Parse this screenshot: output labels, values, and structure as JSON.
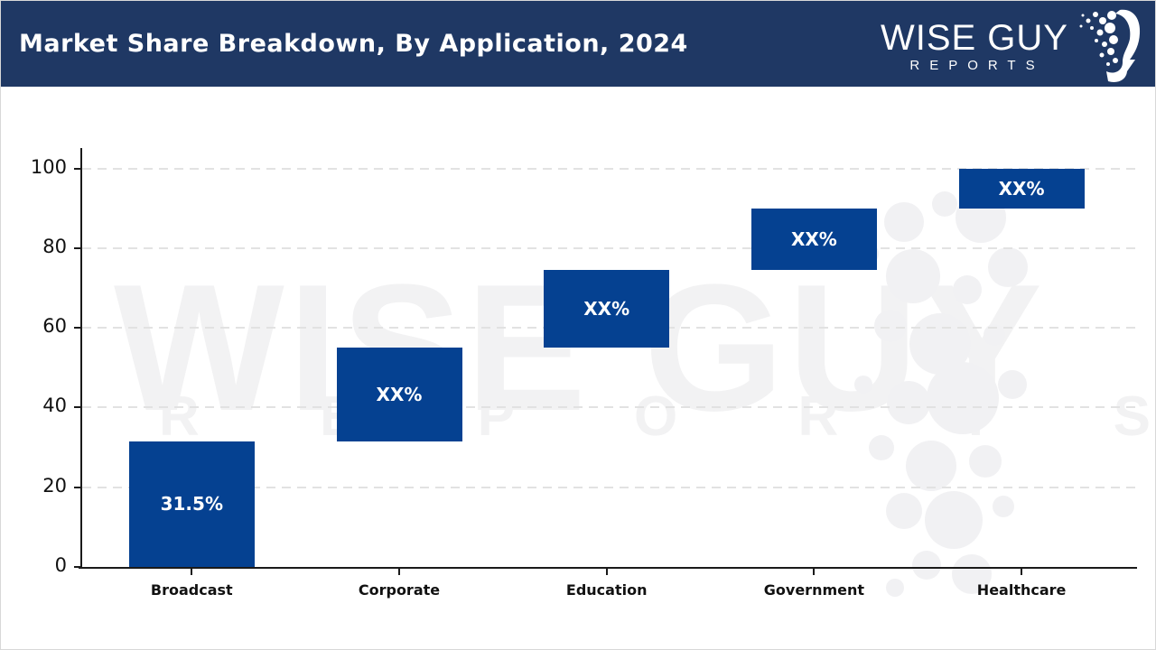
{
  "header": {
    "title": "Market Share Breakdown, By Application, 2024",
    "logo": {
      "line1": "WISE GUY",
      "line2": "REPORTS",
      "line2_display": "R E P O R T S"
    }
  },
  "watermark": {
    "line1": "WISE GUY",
    "line2": "R E P O R T S"
  },
  "colors": {
    "header_bg": "#1F3864",
    "bar": "#054191",
    "bar_label": "#ffffff",
    "grid": "#e2e2e2",
    "axis": "#1a1a1a",
    "watermark": "#f2f2f3"
  },
  "chart_data": {
    "type": "bar",
    "variant": "waterfall",
    "title": "Market Share Breakdown, By Application, 2024",
    "categories": [
      "Broadcast",
      "Corporate",
      "Education",
      "Government",
      "Healthcare"
    ],
    "segments": [
      {
        "category": "Broadcast",
        "start": 0,
        "end": 31.5,
        "value": 31.5,
        "label": "31.5%"
      },
      {
        "category": "Corporate",
        "start": 31.5,
        "end": 55,
        "value": 23.5,
        "label": "XX%"
      },
      {
        "category": "Education",
        "start": 55,
        "end": 74.5,
        "value": 19.5,
        "label": "XX%"
      },
      {
        "category": "Government",
        "start": 74.5,
        "end": 90,
        "value": 15.5,
        "label": "XX%"
      },
      {
        "category": "Healthcare",
        "start": 90,
        "end": 100,
        "value": 10,
        "label": "XX%"
      }
    ],
    "yticks": [
      0,
      20,
      40,
      60,
      80,
      100
    ],
    "ylim": [
      0,
      105
    ],
    "xlabel": "",
    "ylabel": "",
    "grid": {
      "horizontal": true,
      "style": "dashed",
      "vertical": false
    },
    "legend": "none",
    "bar_color": "#054191",
    "label_color": "#ffffff"
  }
}
